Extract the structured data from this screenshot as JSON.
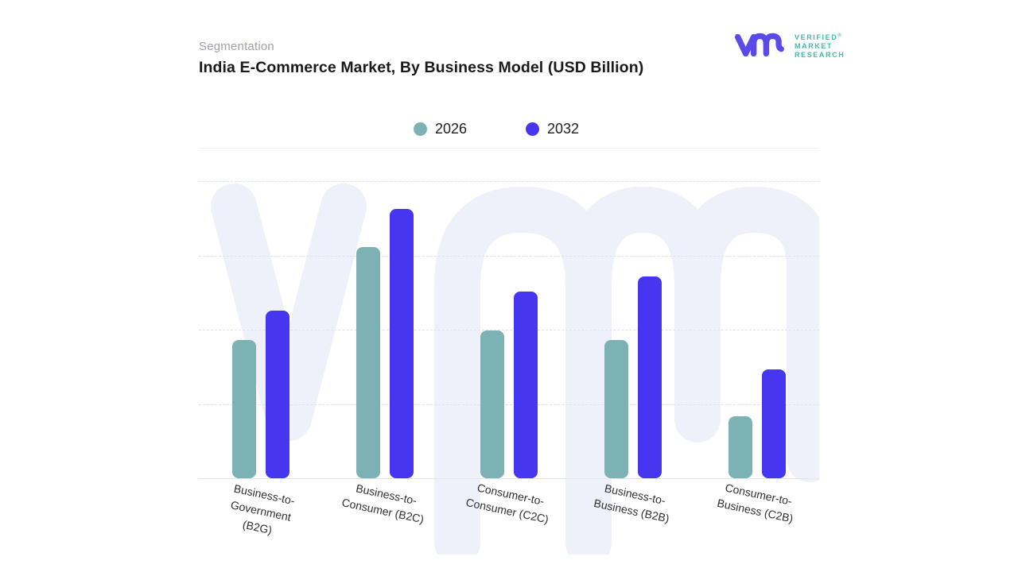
{
  "header": {
    "eyebrow": "Segmentation",
    "title": "India E-Commerce Market, By Business Model (USD Billion)"
  },
  "logo": {
    "name": "verified-market-research",
    "brand_lines": [
      "VERIFIED",
      "MARKET",
      "RESEARCH"
    ],
    "registered_mark": "®",
    "glyph_color": "#5a4be8",
    "text_color": "#3abcb1"
  },
  "legend": [
    {
      "label": "2026",
      "color": "#7db2b5"
    },
    {
      "label": "2032",
      "color": "#4736f0"
    }
  ],
  "chart_data": {
    "type": "bar",
    "title": "India E-Commerce Market, By Business Model (USD Billion)",
    "categories": [
      "Business-to-Government (B2G)",
      "Business-to-Consumer (B2C)",
      "Consumer-to-Consumer (C2C)",
      "Business-to-Business (B2B)",
      "Consumer-to-Business (C2B)"
    ],
    "category_display_lines": [
      [
        "Business-to-",
        "Government",
        "(B2G)"
      ],
      [
        "Business-to-",
        "Consumer (B2C)"
      ],
      [
        "Consumer-to-",
        "Consumer (C2C)"
      ],
      [
        "Business-to-",
        "Business (B2B)"
      ],
      [
        "Consumer-to-",
        "Business (C2B)"
      ]
    ],
    "series": [
      {
        "name": "2026",
        "color": "#7db2b5",
        "values": [
          46.5,
          77.8,
          49.7,
          46.5,
          20.9
        ]
      },
      {
        "name": "2032",
        "color": "#4736f0",
        "values": [
          56.4,
          90.6,
          62.8,
          67.9,
          36.6
        ]
      }
    ],
    "xlabel": "",
    "ylabel": "",
    "ylim": [
      0,
      100
    ],
    "y_axis_tick_labels_visible": false,
    "value_scale_note": "Y axis has no numeric tick labels; values are percentages of the top gridline (4 dashed gridlines at 25/50/75/100).",
    "grid": {
      "horizontal": true,
      "style": "dashed",
      "levels": [
        25,
        50,
        75,
        100
      ]
    },
    "legend_position": "top-center",
    "units": "USD Billion"
  },
  "watermark": {
    "name": "vmr-watermark",
    "color": "#eff1fa"
  },
  "layout_colors": {
    "background": "#ffffff",
    "title_color": "#191a1c",
    "eyebrow_color": "#9aa1a8",
    "gridline_color": "#e1e1e6",
    "baseline_color": "#e8e6e3"
  }
}
